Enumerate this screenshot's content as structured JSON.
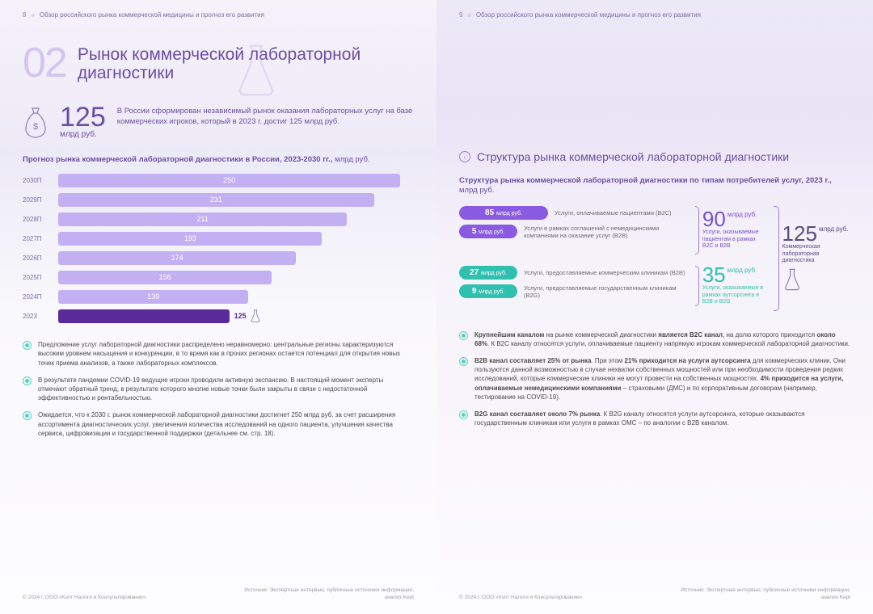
{
  "left": {
    "header": {
      "num": "8",
      "arrow": "»",
      "text": "Обзор российского рынка коммерческой медицины и прогноз его развития"
    },
    "section_num": "02",
    "section_title": "Рынок коммерческой лабораторной диагностики",
    "keyfig": {
      "num": "125",
      "unit": "млрд руб.",
      "text": "В России сформирован независимый рынок оказания лабораторных услуг на базе коммерческих игроков, который в 2023 г. достиг 125 млрд руб."
    },
    "chart": {
      "title": "Прогноз рынка коммерческой лабораторной диагностики в России, 2023-2030 гг.,",
      "unit": " млрд руб.",
      "max": 260,
      "bars": [
        {
          "label": "2030П",
          "value": 250,
          "color": "#c3b0f2"
        },
        {
          "label": "2029П",
          "value": 231,
          "color": "#c3b0f2"
        },
        {
          "label": "2028П",
          "value": 211,
          "color": "#c3b0f2"
        },
        {
          "label": "2027П",
          "value": 193,
          "color": "#c3b0f2"
        },
        {
          "label": "2026П",
          "value": 174,
          "color": "#c3b0f2"
        },
        {
          "label": "2025П",
          "value": 156,
          "color": "#c3b0f2"
        },
        {
          "label": "2024П",
          "value": 139,
          "color": "#c3b0f2"
        },
        {
          "label": "2023",
          "value": 125,
          "color": "#5a2a9a",
          "flask": true
        }
      ]
    },
    "bullets": [
      "Предложение услуг лабораторной диагностики распределено неравномерно: центральные регионы характеризуются высоким уровнем насыщения и конкуренции, в то время как в прочих регионах остается потенциал для открытия новых точек приема анализов, а также лабораторных комплексов.",
      "В результате пандемии COVID-19 ведущие игроки проводили активную экспансию. В настоящий момент эксперты отмечают обратный тренд, в результате которого многие новые точки были закрыты в связи с недостаточной эффективностью и рентабельностью.",
      "Ожидается, что к 2030 г. рынок коммерческой лабораторной диагностики достигнет 250 млрд руб. за счет расширения ассортимента диагностических услуг, увеличения количества исследований на одного пациента, улучшения качества сервиса, цифровизации и государственной поддержки (детальнее см. стр. 18)."
    ],
    "footer": {
      "copy": "© 2024 г. ООО «Кэпт Налоги и Консультирование».",
      "src": "Источник: Экспертные интервью, публичные источники информации, анализ Kept"
    }
  },
  "right": {
    "header": {
      "num": "9",
      "arrow": "»",
      "text": "Обзор российского рынка коммерческой медицины и прогноз его развития"
    },
    "subhead": "Структура рынка коммерческой лабораторной диагностики",
    "struct_title": "Структура рынка коммерческой лабораторной диагностики по типам потребителей услуг, 2023 г.,",
    "struct_unit": " млрд руб.",
    "group1": {
      "items": [
        {
          "val": "85",
          "unit": "млрд руб.",
          "color": "#8a5ae0",
          "desc": "Услуги, оплачиваемые пациентами (B2C)",
          "wide": true
        },
        {
          "val": "5",
          "unit": "млрд руб.",
          "color": "#8a5ae0",
          "desc": "Услуги в рамках соглашений с немедицинскими компаниями на оказание услуг (B2B)"
        }
      ],
      "sum": {
        "n": "90",
        "u": "млрд\nруб.",
        "d": "Услуги, оказываемые пациентам в рамках B2C и B2B",
        "cls": "purple"
      }
    },
    "group2": {
      "items": [
        {
          "val": "27",
          "unit": "млрд руб.",
          "color": "#2fc0b0",
          "desc": "Услуги, предоставляемые коммерческим клиникам (B2B)"
        },
        {
          "val": "9",
          "unit": "млрд руб.",
          "color": "#2fc0b0",
          "desc": "Услуги, предоставляемые государственным клиникам (B2G)"
        }
      ],
      "sum": {
        "n": "35",
        "u": "млрд\nруб.",
        "d": "Услуги, оказываемые в рамках аутсорсинга в B2B и B2G",
        "cls": "teal"
      }
    },
    "total": {
      "n": "125",
      "u": "млрд\nруб.",
      "d": "Коммерческая лабораторная диагностика",
      "cls": "dark"
    },
    "bullets": [
      "<strong>Крупнейшим каналом</strong> на рынке коммерческой диагностики <strong>является B2C канал</strong>, на долю которого приходится <strong>около 68%</strong>. К B2C каналу относятся услуги, оплачиваемые пациенту напрямую игрокам коммерческой лабораторной диагностики.",
      "<strong>B2B канал составляет 25% от рынка</strong>. При этом <strong>21% приходится на услуги аутсорсинга</strong> для коммерческих клиник. Они пользуются данной возможностью в случае нехватки собственных мощностей или при необходимости проведения редких исследований, которые коммерческие клиники не могут провести на собственных мощностях. <strong>4% приходится на услуги, оплачиваемые немедицинскими компаниями</strong> – страховыми (ДМС) и по корпоративным договорам (например, тестирование на COVID-19).",
      "<strong>B2G канал составляет около 7% рынка</strong>. К B2G каналу относятся услуги аутсорсинга, которые оказываются государственным клиникам или услуги в рамках ОМС – по аналогии с B2B каналом."
    ],
    "footer": {
      "copy": "© 2024 г. ООО «Кэпт Налоги и Консультирование».",
      "src": "Источник: Экспертные интервью, публичные источники информации, анализ Kept"
    }
  }
}
